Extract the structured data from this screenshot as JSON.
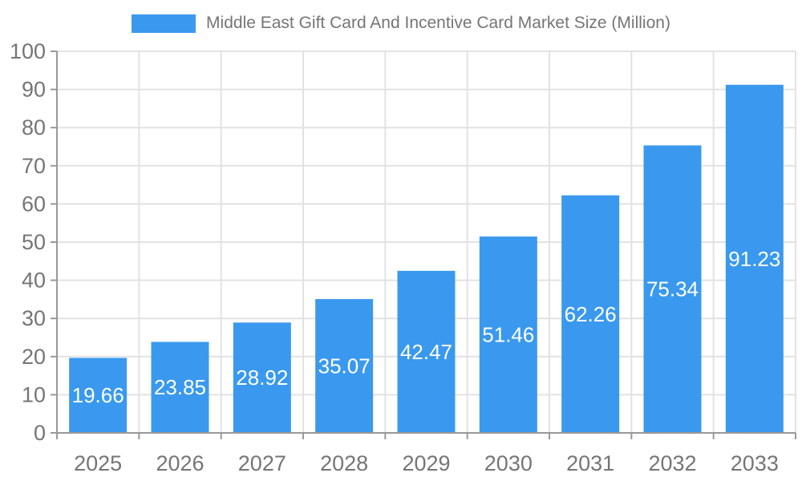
{
  "chart_data": {
    "type": "bar",
    "title": "Middle East Gift Card And Incentive Card Market Size (Million)",
    "legend_position": "top-center",
    "categories": [
      "2025",
      "2026",
      "2027",
      "2028",
      "2029",
      "2030",
      "2031",
      "2032",
      "2033"
    ],
    "values": [
      19.66,
      23.85,
      28.92,
      35.07,
      42.47,
      51.46,
      62.26,
      75.34,
      91.23
    ],
    "value_labels": [
      "19.66",
      "23.85",
      "28.92",
      "35.07",
      "42.47",
      "51.46",
      "62.26",
      "75.34",
      "91.23"
    ],
    "xlabel": "",
    "ylabel": "",
    "ylim": [
      0,
      100
    ],
    "yticks": [
      0,
      10,
      20,
      30,
      40,
      50,
      60,
      70,
      80,
      90,
      100
    ],
    "grid": true,
    "value_labels_inside_bars": true,
    "colors": {
      "bar": "#3a99ee",
      "grid": "#e2e2e2",
      "axis": "#999999",
      "tick_text": "#757575",
      "value_text": "#ffffff",
      "legend_text": "#757575",
      "background": "#ffffff"
    }
  }
}
